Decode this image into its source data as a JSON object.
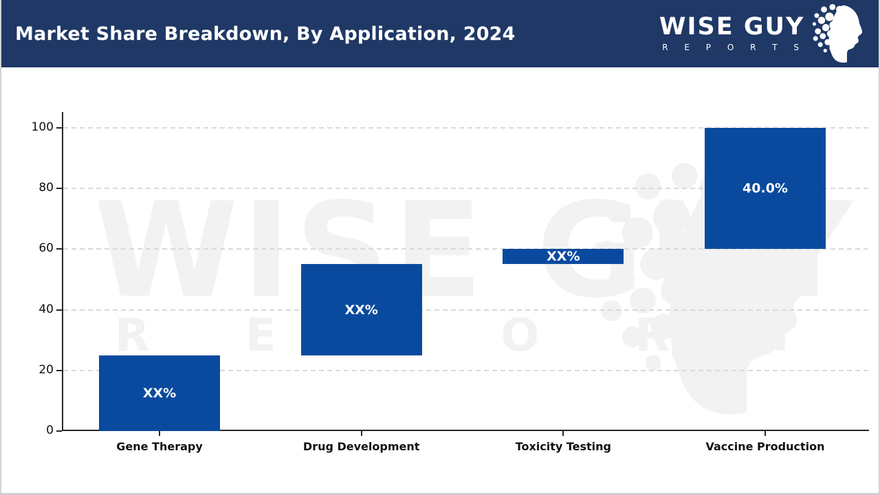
{
  "header": {
    "title": "Market Share Breakdown, By Application, 2024",
    "brand": {
      "line1": "WISE GUY",
      "line2": "R E P O R T S"
    }
  },
  "watermark": {
    "line1": "WISE GUY",
    "line2": "R E P O R T S"
  },
  "colors": {
    "header_bg": "#1f3866",
    "bar": "#0a4a9e",
    "bar_label_text": "#ffffff",
    "grid": "#d9d9d9",
    "axis": "#262626",
    "watermark": "#f2f2f2"
  },
  "chart_data": {
    "type": "bar",
    "subtype": "waterfall",
    "title": "Market Share Breakdown, By Application, 2024",
    "xlabel": "",
    "ylabel": "",
    "ylim": [
      0,
      105
    ],
    "yticks": [
      0,
      20,
      40,
      60,
      80,
      100
    ],
    "grid": "horizontal-dashed-above-bars",
    "legend": "none",
    "categories": [
      "Gene Therapy",
      "Drug Development",
      "Toxicity Testing",
      "Vaccine Production"
    ],
    "bars": [
      {
        "category": "Gene Therapy",
        "start": 0,
        "end": 25,
        "value_pct": 25,
        "label": "XX%"
      },
      {
        "category": "Drug Development",
        "start": 25,
        "end": 55,
        "value_pct": 30,
        "label": "XX%"
      },
      {
        "category": "Toxicity Testing",
        "start": 55,
        "end": 60,
        "value_pct": 5,
        "label": "XX%"
      },
      {
        "category": "Vaccine Production",
        "start": 60,
        "end": 100,
        "value_pct": 40,
        "label": "40.0%"
      }
    ]
  }
}
